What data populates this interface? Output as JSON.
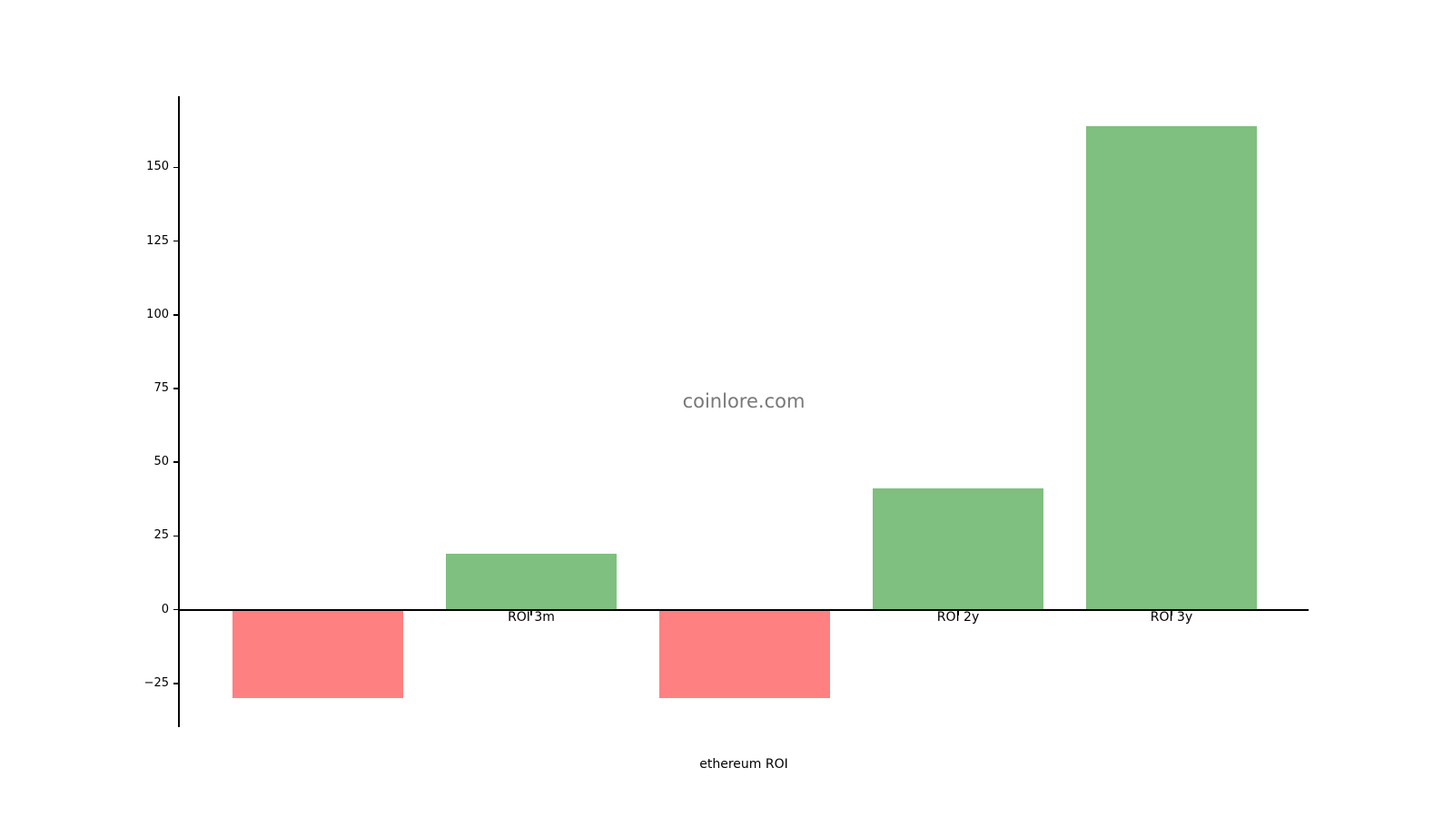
{
  "page": {
    "background": "#ffffff"
  },
  "watermark": {
    "text": "coinlore.com",
    "color": "#787878"
  },
  "chart_data": {
    "type": "bar",
    "title": "",
    "xlabel": "ethereum ROI",
    "ylabel": "",
    "categories": [
      "",
      "ROI 3m",
      "",
      "ROI 2y",
      "ROI 3y"
    ],
    "values": [
      -30,
      19,
      -30,
      41,
      164
    ],
    "bar_colors": [
      "#ff8080",
      "#7fbf7f",
      "#ff8080",
      "#7fbf7f",
      "#7fbf7f"
    ],
    "negative_color": "#ff8080",
    "positive_color": "#7fbf7f",
    "y_ticks": [
      -25,
      0,
      25,
      50,
      75,
      100,
      125,
      150
    ],
    "ylim": [
      -39.8,
      174.1
    ],
    "grid": false,
    "legend": null,
    "axis_color": "#000000",
    "tick_label_color": "#000000",
    "background_color": "#ffffff"
  }
}
